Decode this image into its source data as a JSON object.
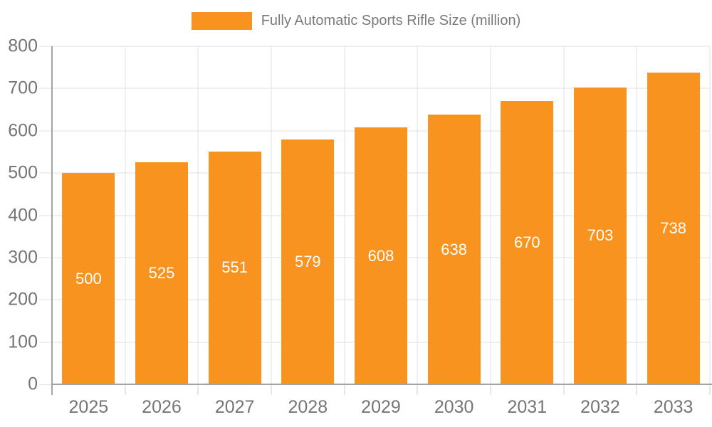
{
  "chart_data": {
    "type": "bar",
    "title": "",
    "legend_label": "Fully Automatic Sports Rifle Size (million)",
    "legend_position": "top-center",
    "categories": [
      "2025",
      "2026",
      "2027",
      "2028",
      "2029",
      "2030",
      "2031",
      "2032",
      "2033"
    ],
    "values": [
      500,
      525,
      551,
      579,
      608,
      638,
      670,
      703,
      738
    ],
    "xlabel": "",
    "ylabel": "",
    "ylim": [
      0,
      800
    ],
    "yticks": [
      0,
      100,
      200,
      300,
      400,
      500,
      600,
      700,
      800
    ],
    "grid": true,
    "colors": {
      "bar": "#F7931E",
      "grid": "#E2E2E2",
      "axis_line": "#A3A3A3",
      "tick": "#CFCFCF",
      "axis_text": "#757575",
      "legend_text": "#7A7A7A",
      "value_label_text": "#FFFFFF",
      "background": "#FFFFFF"
    }
  }
}
